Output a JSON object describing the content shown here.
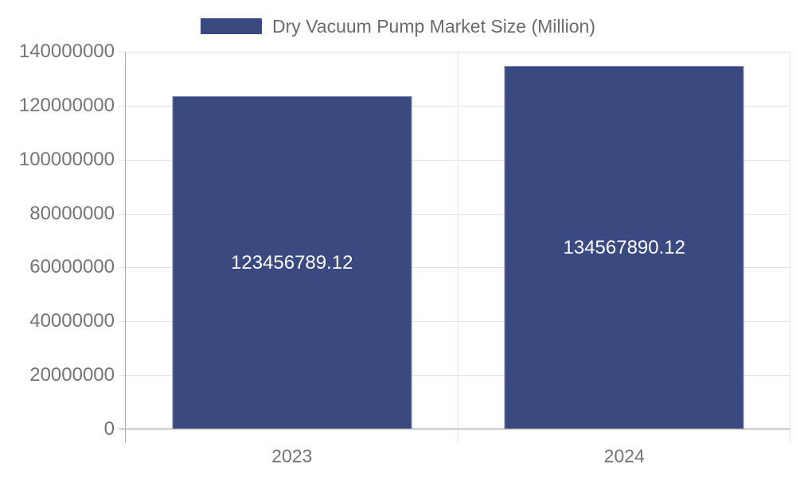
{
  "legend": {
    "label": "Dry Vacuum Pump Market Size (Million)"
  },
  "chart_data": {
    "type": "bar",
    "categories": [
      "2023",
      "2024"
    ],
    "series": [
      {
        "name": "Dry Vacuum Pump Market Size (Million)",
        "values": [
          123456789.12,
          134567890.12
        ]
      }
    ],
    "data_labels": [
      "123456789.12",
      "134567890.12"
    ],
    "title": "Dry Vacuum Pump Market Size (Million)",
    "xlabel": "",
    "ylabel": "",
    "ylim": [
      0,
      140000000
    ],
    "ytick_interval": 20000000,
    "ytick_labels_topdown": [
      "140000000",
      "120000000",
      "100000000",
      "80000000",
      "60000000",
      "40000000",
      "20000000",
      "0"
    ],
    "grid": true,
    "legend_position": "top",
    "data_label_position": "inside-center"
  },
  "colors": {
    "bar": "#3A4A81",
    "bar_label": "#FFFFFF",
    "axis_line": "#ADADAD",
    "grid_line": "#E4E4E8",
    "tick_label": "#757575",
    "legend_text": "#6B6B6B",
    "background": "#FFFFFF"
  }
}
